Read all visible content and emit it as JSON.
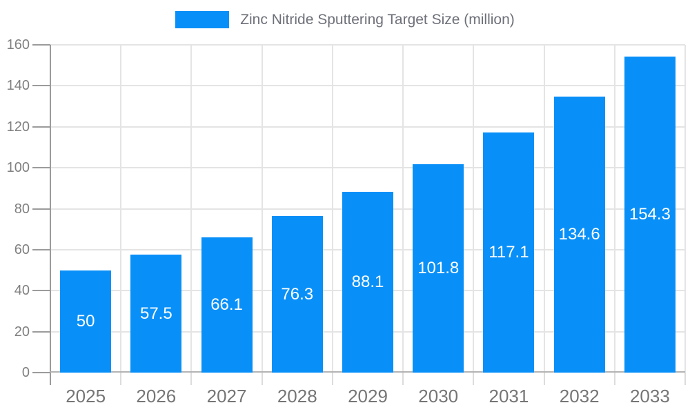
{
  "chart_data": {
    "type": "bar",
    "title": "Zinc Nitride Sputtering Target Size (million)",
    "categories": [
      "2025",
      "2026",
      "2027",
      "2028",
      "2029",
      "2030",
      "2031",
      "2032",
      "2033"
    ],
    "series": [
      {
        "name": "Zinc Nitride Sputtering Target Size (million)",
        "values": [
          50,
          57.5,
          66.1,
          76.3,
          88.1,
          101.8,
          117.1,
          134.6,
          154.3
        ],
        "color": "#0990f8"
      }
    ],
    "value_labels": [
      "50",
      "57.5",
      "66.1",
      "76.3",
      "88.1",
      "101.8",
      "117.1",
      "134.6",
      "154.3"
    ],
    "xlabel": "",
    "ylabel": "",
    "ylim": [
      0,
      160
    ],
    "yticks": [
      0,
      20,
      40,
      60,
      80,
      100,
      120,
      140,
      160
    ],
    "grid": "on",
    "legend_position": "top",
    "value_label_position": "inside-center",
    "colors": {
      "bar": "#0990f8",
      "grid_line": "#e4e4e4",
      "y_axis_line": "#9b9b9b",
      "y_tick": "#9b9b9b",
      "x_axis_line": "#b3b3b3",
      "x_tick": "#dcdcdc",
      "x_label_text": "#757575",
      "y_label_text": "#808080",
      "legend_text": "#6e7079",
      "value_label_text": "#ffffff",
      "background": "#ffffff"
    }
  }
}
